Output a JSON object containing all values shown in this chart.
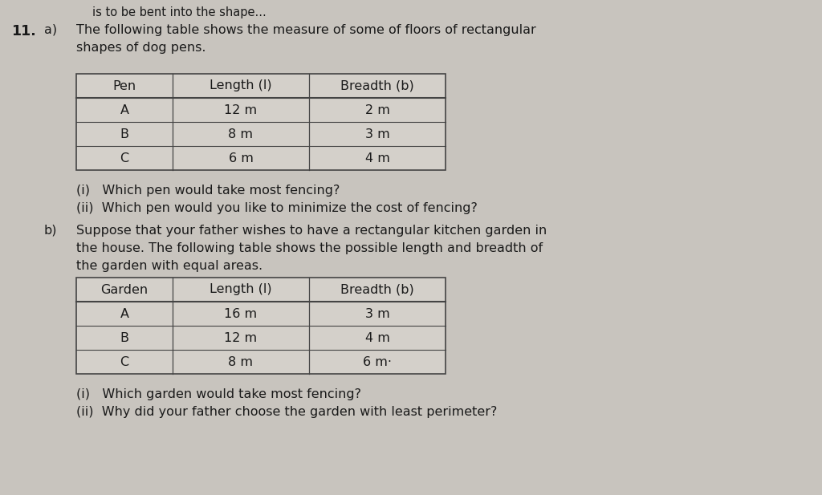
{
  "background_color": "#c8c4be",
  "top_partial_text": "is to be bent into the shape...",
  "q11_num": "11.",
  "part_a_label": "a)",
  "part_a_line1": "The following table shows the measure of some of floors of rectangular",
  "part_a_line2": "shapes of dog pens.",
  "table1_headers": [
    "Pen",
    "Length (l)",
    "Breadth (b)"
  ],
  "table1_rows": [
    [
      "A",
      "12 m",
      "2 m"
    ],
    [
      "B",
      "8 m",
      "3 m"
    ],
    [
      "C",
      "6 m",
      "4 m"
    ]
  ],
  "sub_q1_i": "(i)   Which pen would take most fencing?",
  "sub_q1_ii": "(ii)  Which pen would you like to minimize the cost of fencing?",
  "part_b_label": "b)",
  "part_b_line1": "Suppose that your father wishes to have a rectangular kitchen garden in",
  "part_b_line2": "the house. The following table shows the possible length and breadth of",
  "part_b_line3": "the garden with equal areas.",
  "table2_headers": [
    "Garden",
    "Length (l)",
    "Breadth (b)"
  ],
  "table2_rows": [
    [
      "A",
      "16 m",
      "3 m"
    ],
    [
      "B",
      "12 m",
      "4 m"
    ],
    [
      "C",
      "8 m",
      "6 m·"
    ]
  ],
  "sub_q2_i": "(i)   Which garden would take most fencing?",
  "sub_q2_ii": "(ii)  Why did your father choose the garden with least perimeter?",
  "font_size": 11.5,
  "table_font_size": 11.5,
  "text_color": "#1a1a1a",
  "table_line_color": "#444444",
  "table_bg_color": "#bab6b0"
}
